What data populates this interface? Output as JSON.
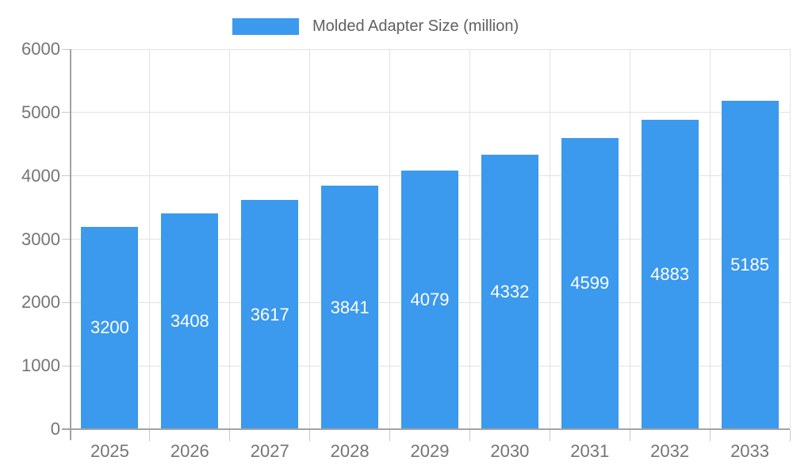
{
  "chart_data": {
    "type": "bar",
    "title": "Molded Adapter Size (million)",
    "categories": [
      "2025",
      "2026",
      "2027",
      "2028",
      "2029",
      "2030",
      "2031",
      "2032",
      "2033"
    ],
    "values": [
      3200,
      3408,
      3617,
      3841,
      4079,
      4332,
      4599,
      4883,
      5185
    ],
    "xlabel": "",
    "ylabel": "",
    "ylim": [
      0,
      6000
    ],
    "ytick_step": 1000,
    "ytick_labels": [
      "0",
      "1000",
      "2000",
      "3000",
      "4000",
      "5000",
      "6000"
    ],
    "grid": true,
    "legend_position": "top",
    "value_labels": "inside-center-white"
  },
  "legend": {
    "label": "Molded Adapter Size (million)"
  },
  "colors": {
    "bar": "#3b99ee",
    "gridline": "#e2e2e2",
    "axis": "#a3a3a3",
    "tick": "#c8c8c8",
    "axis_text": "#757575",
    "legend_text": "#616161",
    "value_text": "#ffffff",
    "background": "#ffffff"
  }
}
